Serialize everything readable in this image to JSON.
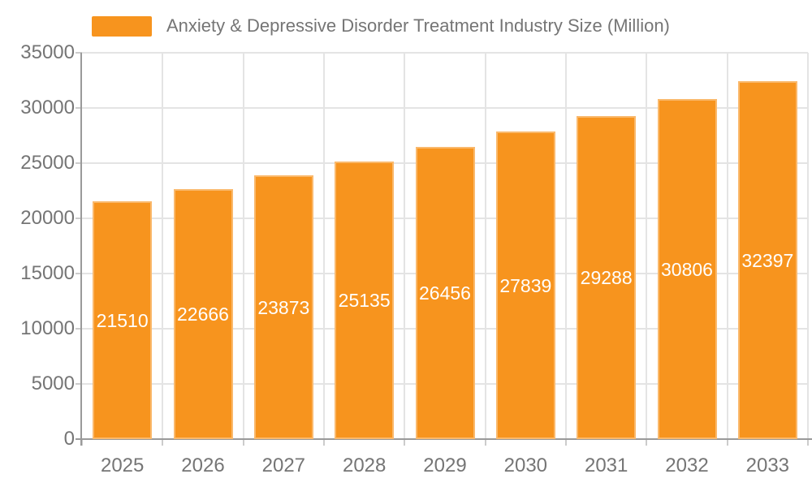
{
  "chart_data": {
    "type": "bar",
    "title": "Anxiety & Depressive Disorder Treatment Industry Size (Million)",
    "categories": [
      "2025",
      "2026",
      "2027",
      "2028",
      "2029",
      "2030",
      "2031",
      "2032",
      "2033"
    ],
    "values": [
      21510,
      22666,
      23873,
      25135,
      26456,
      27839,
      29288,
      30806,
      32397
    ],
    "xlabel": "",
    "ylabel": "",
    "ylim": [
      0,
      35000
    ],
    "yticks": [
      0,
      5000,
      10000,
      15000,
      20000,
      25000,
      30000,
      35000
    ],
    "grid": true,
    "legend_position": "top",
    "value_labels": "inside-center"
  },
  "colors": {
    "bar": "#F7941E",
    "grid": "#E4E4E4",
    "tick": "#CCCCCC",
    "axis": "#9A9A9A",
    "label": "#757575",
    "value_label": "#FFFFFF",
    "background": "#FFFFFF"
  }
}
